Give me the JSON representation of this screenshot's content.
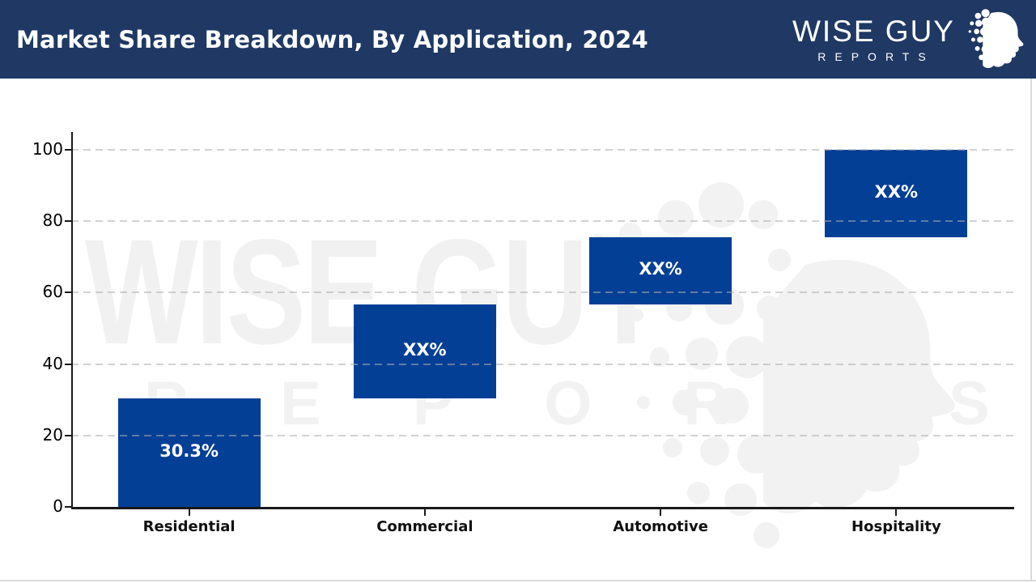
{
  "header": {
    "title": "Market Share Breakdown, By Application, 2024",
    "bg_color": "#1f3864",
    "logo": {
      "line1": "WISE GUY",
      "line2": "REPORTS"
    }
  },
  "watermark": {
    "line1": "WISE GUY",
    "line2": "R E P O R T S"
  },
  "chart_data": {
    "type": "bar",
    "subtype": "floating-segment-waterfall",
    "title": "Market Share Breakdown, By Application, 2024",
    "categories": [
      "Residential",
      "Commercial",
      "Automotive",
      "Hospitality"
    ],
    "series": [
      {
        "name": "Market share segment",
        "segments": [
          {
            "category": "Residential",
            "start": 0,
            "end": 30.3,
            "label": "30.3%"
          },
          {
            "category": "Commercial",
            "start": 30.3,
            "end": 56.8,
            "label": "XX%"
          },
          {
            "category": "Automotive",
            "start": 56.8,
            "end": 75.6,
            "label": "XX%"
          },
          {
            "category": "Hospitality",
            "start": 75.6,
            "end": 100,
            "label": "XX%"
          }
        ]
      }
    ],
    "xlabel": "",
    "ylabel": "",
    "ylim": [
      0,
      105
    ],
    "yticks": [
      "0",
      "20",
      "40",
      "60",
      "80",
      "100"
    ],
    "ytick_values": [
      0,
      20,
      40,
      60,
      80,
      100
    ],
    "grid": "horizontal-dashed",
    "legend": "none",
    "bar_color": "#043f96",
    "axis_color": "#1a1a1a",
    "grid_color": "#dcdcdc",
    "label_color_on_bar": "#ffffff"
  }
}
